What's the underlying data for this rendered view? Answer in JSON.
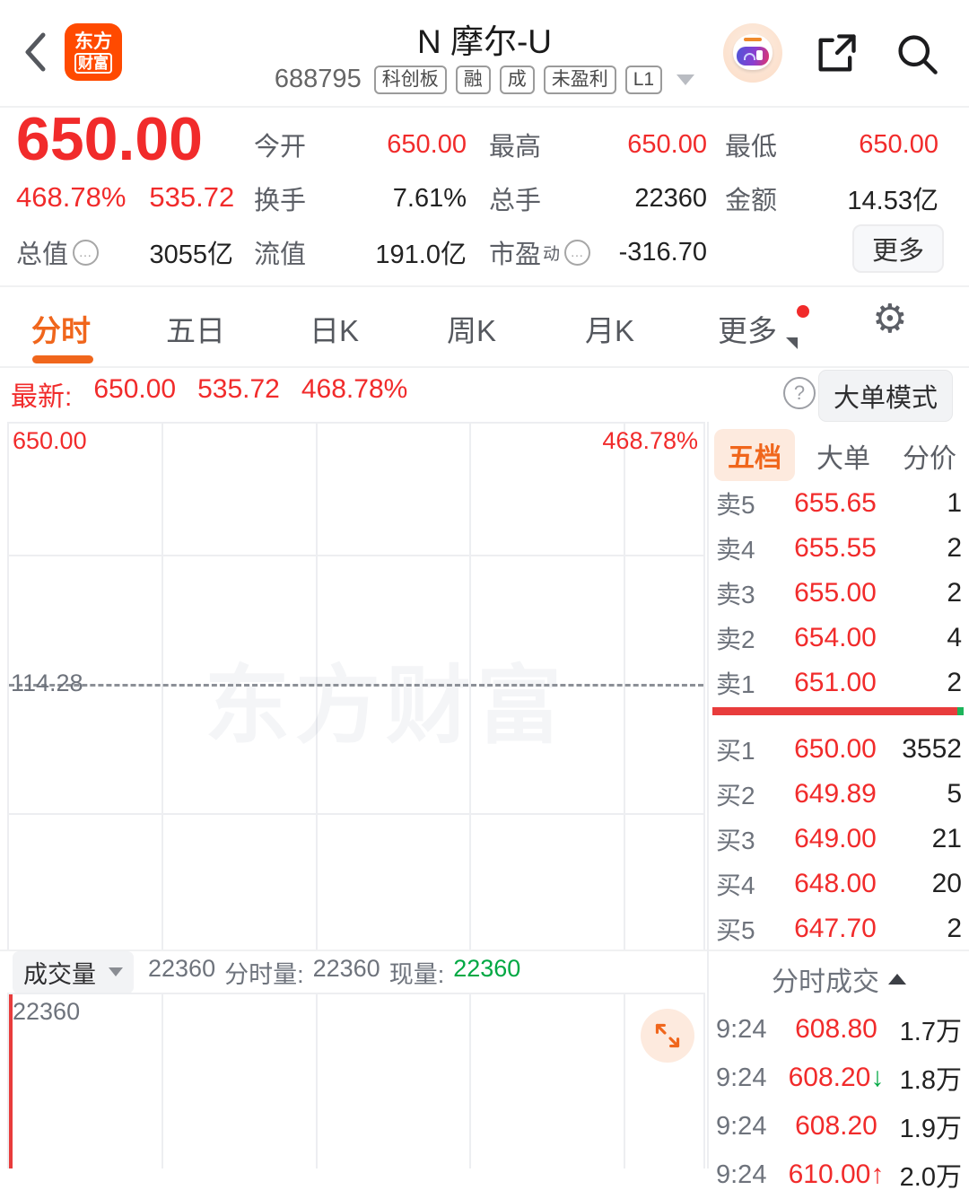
{
  "colors": {
    "red": "#f12b2b",
    "green": "#00a843",
    "orange": "#f0661c",
    "logo_orange": "#ff4a00"
  },
  "header": {
    "logo": {
      "line1": "东方",
      "line2": "财富"
    },
    "title": "N 摩尔-U",
    "code": "688795",
    "tags": [
      "科创板",
      "融",
      "成",
      "未盈利",
      "L1"
    ]
  },
  "quote": {
    "price": "650.00",
    "change_pct": "468.78%",
    "change_amt": "535.72",
    "row1": [
      {
        "label": "今开",
        "value": "650.00"
      },
      {
        "label": "最高",
        "value": "650.00"
      },
      {
        "label": "最低",
        "value": "650.00"
      }
    ],
    "row2": [
      {
        "label": "换手",
        "value": "7.61%"
      },
      {
        "label": "总手",
        "value": "22360"
      },
      {
        "label": "金额",
        "value": "14.53亿"
      }
    ],
    "row3": [
      {
        "label": "总值",
        "value": "3055亿"
      },
      {
        "label": "流值",
        "value": "191.0亿"
      },
      {
        "label": "市盈",
        "sup": "动",
        "value": "-316.70"
      }
    ],
    "more_btn": "更多"
  },
  "tabs": {
    "items": [
      "分时",
      "五日",
      "日K",
      "周K",
      "月K",
      "更多"
    ]
  },
  "latest": {
    "label": "最新:",
    "price": "650.00",
    "amt": "535.72",
    "pct": "468.78%",
    "help_icon": "?",
    "mode_btn": "大单模式"
  },
  "chart": {
    "top_left": "650.00",
    "top_right": "468.78%",
    "mid_line": "114.28",
    "watermark": "东方财富"
  },
  "order_book": {
    "tabs": [
      "五档",
      "大单",
      "分价"
    ],
    "asks": [
      {
        "label": "卖5",
        "price": "655.65",
        "qty": "1"
      },
      {
        "label": "卖4",
        "price": "655.55",
        "qty": "2"
      },
      {
        "label": "卖3",
        "price": "655.00",
        "qty": "2"
      },
      {
        "label": "卖2",
        "price": "654.00",
        "qty": "4"
      },
      {
        "label": "卖1",
        "price": "651.00",
        "qty": "2"
      }
    ],
    "bids": [
      {
        "label": "买1",
        "price": "650.00",
        "qty": "3552"
      },
      {
        "label": "买2",
        "price": "649.89",
        "qty": "5"
      },
      {
        "label": "买3",
        "price": "649.00",
        "qty": "21"
      },
      {
        "label": "买4",
        "price": "648.00",
        "qty": "20"
      },
      {
        "label": "买5",
        "price": "647.70",
        "qty": "2"
      }
    ],
    "depth_red_pct": "97.5"
  },
  "ticks": {
    "title": "分时成交",
    "rows": [
      {
        "time": "9:24",
        "price": "608.80",
        "arrow": "",
        "vol": "1.7万"
      },
      {
        "time": "9:24",
        "price": "608.20",
        "arrow": "↓",
        "arrow_color": "#00a843",
        "vol": "1.8万"
      },
      {
        "time": "9:24",
        "price": "608.20",
        "arrow": "",
        "vol": "1.9万"
      },
      {
        "time": "9:24",
        "price": "610.00",
        "arrow": "↑",
        "arrow_color": "#f12b2b",
        "vol": "2.0万"
      }
    ]
  },
  "volume": {
    "selector": "成交量",
    "total": "22360",
    "fenshi_label": "分时量:",
    "fenshi_val": "22360",
    "xian_label": "现量:",
    "xian_val": "22360",
    "axis_label": "22360"
  }
}
